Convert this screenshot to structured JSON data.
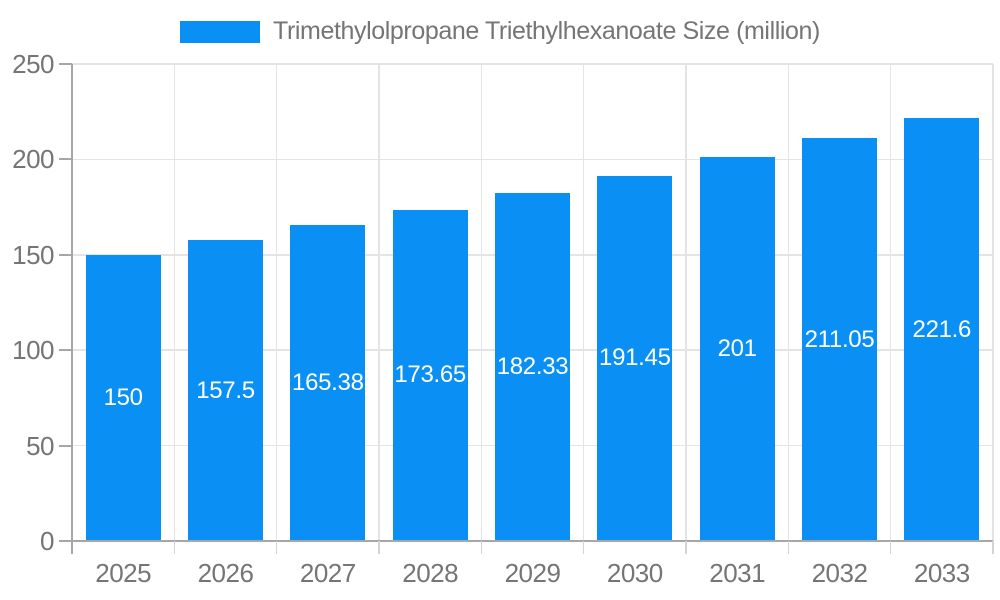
{
  "colors": {
    "bar": "#0a90f4",
    "axis_text": "#757575",
    "legend_text": "#757575",
    "value_label_text": "#ffffff",
    "gridline": "#e4e4e4",
    "axis_line": "#a6a6a6",
    "category_tick": "#d4d4d4",
    "background": "#ffffff"
  },
  "legend": {
    "label": "Trimethylolpropane Triethylhexanoate Size (million)"
  },
  "chart_data": {
    "type": "bar",
    "title": "Trimethylolpropane Triethylhexanoate Size (million)",
    "categories": [
      "2025",
      "2026",
      "2027",
      "2028",
      "2029",
      "2030",
      "2031",
      "2032",
      "2033"
    ],
    "series": [
      {
        "name": "Trimethylolpropane Triethylhexanoate Size (million)",
        "values": [
          150,
          157.5,
          165.38,
          173.65,
          182.33,
          191.45,
          201,
          211.05,
          221.6
        ]
      }
    ],
    "value_label_strings": [
      "150",
      "157.5",
      "165.38",
      "173.65",
      "182.33",
      "191.45",
      "201",
      "211.05",
      "221.6"
    ],
    "xlabel": "",
    "ylabel": "",
    "ylim": [
      0,
      250
    ],
    "yticks": [
      0,
      50,
      100,
      150,
      200,
      250
    ],
    "grid": true,
    "legend_position": "top-center",
    "value_labels_position": "inside-center",
    "bar_color": "#0a90f4"
  }
}
